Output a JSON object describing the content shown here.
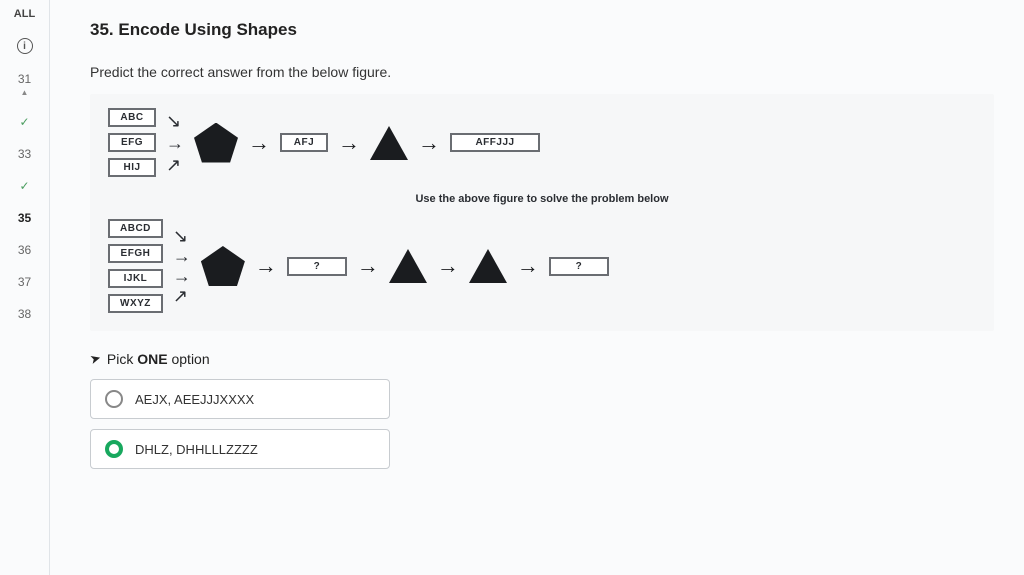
{
  "sidebar": {
    "all_label": "ALL",
    "nav": [
      {
        "num": "31",
        "caret": true
      },
      {
        "check": true
      },
      {
        "num": "33"
      },
      {
        "check": true
      },
      {
        "num": "35",
        "current": true
      },
      {
        "num": "36"
      },
      {
        "num": "37"
      },
      {
        "num": "38"
      }
    ]
  },
  "question": {
    "number": "35.",
    "title": "Encode Using Shapes",
    "subtitle": "Predict the correct answer from the below figure."
  },
  "figure": {
    "example": {
      "inputs": [
        "ABC",
        "EFG",
        "HIJ"
      ],
      "out1": "AFJ",
      "out2": "AFFJJJ"
    },
    "caption": "Use the above figure to solve the problem below",
    "problem": {
      "inputs": [
        "ABCD",
        "EFGH",
        "IJKL",
        "WXYZ"
      ],
      "q1": "?",
      "q2": "?"
    },
    "colors": {
      "shape_fill": "#1a1c1f",
      "box_border": "#6a6d72",
      "panel_bg": "#f6f7f8"
    }
  },
  "answers": {
    "prompt_prefix": "Pick ",
    "prompt_bold": "ONE",
    "prompt_suffix": " option",
    "options": [
      {
        "label": "AEJX, AEEJJJXXXX",
        "selected": false
      },
      {
        "label": "DHLZ, DHHLLLZZZZ",
        "selected": true
      }
    ]
  }
}
